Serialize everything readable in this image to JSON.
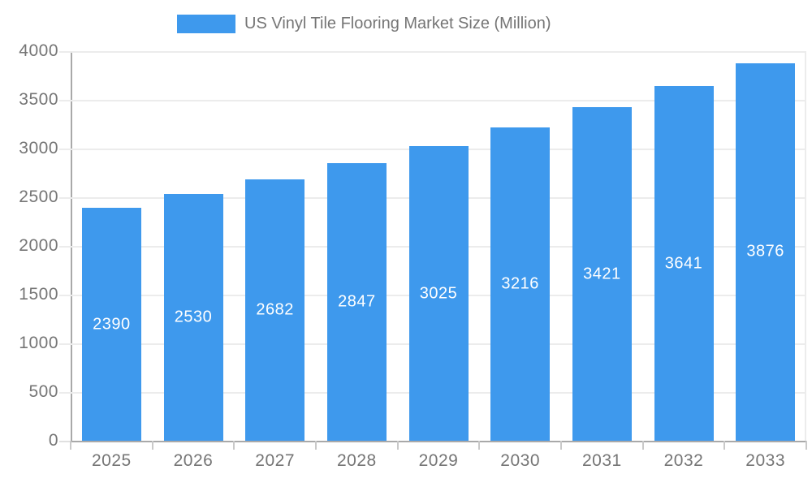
{
  "legend": {
    "label": "US Vinyl Tile Flooring Market Size (Million)"
  },
  "chart_data": {
    "type": "bar",
    "title": "US Vinyl Tile Flooring Market Size (Million)",
    "categories": [
      "2025",
      "2026",
      "2027",
      "2028",
      "2029",
      "2030",
      "2031",
      "2032",
      "2033"
    ],
    "values": [
      2390,
      2530,
      2682,
      2847,
      3025,
      3216,
      3421,
      3641,
      3876
    ],
    "series": [
      {
        "name": "US Vinyl Tile Flooring Market Size (Million)",
        "values": [
          2390,
          2530,
          2682,
          2847,
          3025,
          3216,
          3421,
          3641,
          3876
        ]
      }
    ],
    "xlabel": "",
    "ylabel": "",
    "ylim": [
      0,
      4000
    ],
    "yticks": [
      0,
      500,
      1000,
      1500,
      2000,
      2500,
      3000,
      3500,
      4000
    ],
    "grid": true,
    "legend_position": "top",
    "value_labels": "inside-center"
  },
  "colors": {
    "bar": "#3E99ED",
    "value_label": "#ffffff",
    "axis_text": "#757575",
    "grid_line": "#ececec",
    "axis_line": "#a9a9a9",
    "background": "#ffffff"
  }
}
